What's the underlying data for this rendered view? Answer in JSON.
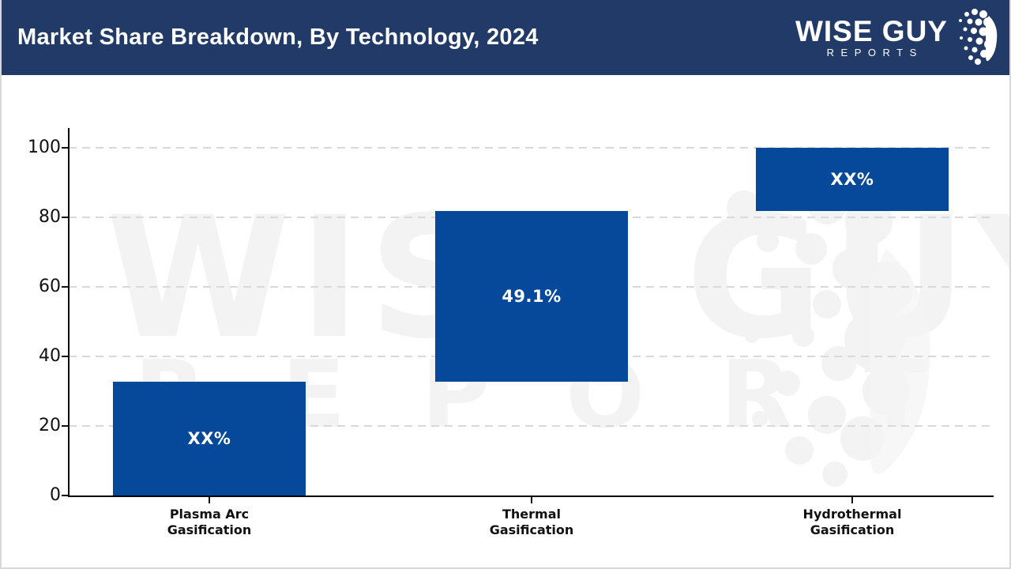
{
  "header": {
    "title": "Market Share Breakdown, By Technology, 2024",
    "logo": {
      "line1": "WISE GUY",
      "line2": "REPORTS"
    }
  },
  "watermark": {
    "line1": "WISE GUY",
    "line2": "REPORTS"
  },
  "colors": {
    "header_bg": "#213a67",
    "bar": "#06489a",
    "grid": "#d9d9d9",
    "axis": "#000000",
    "tick_text": "#111111",
    "bar_label_text": "#ffffff",
    "watermark": "#f3f3f3",
    "border": "#d8d8d8"
  },
  "chart_data": {
    "type": "bar",
    "subtype": "floating-stacked-percent",
    "title": "Market Share Breakdown, By Technology, 2024",
    "xlabel": "",
    "ylabel": "",
    "ylim": [
      0,
      100
    ],
    "yticks": [
      0,
      20,
      40,
      60,
      80,
      100
    ],
    "grid": "horizontal-dashed",
    "legend": "none",
    "segments": [
      {
        "category_lines": [
          "Plasma Arc",
          "Gasification"
        ],
        "start": 0,
        "end": 32.8,
        "value": 32.8,
        "label": "XX%"
      },
      {
        "category_lines": [
          "Thermal",
          "Gasification"
        ],
        "start": 32.8,
        "end": 81.9,
        "value": 49.1,
        "label": "49.1%"
      },
      {
        "category_lines": [
          "Hydrothermal",
          "Gasification"
        ],
        "start": 81.9,
        "end": 100,
        "value": 18.1,
        "label": "XX%"
      }
    ]
  }
}
